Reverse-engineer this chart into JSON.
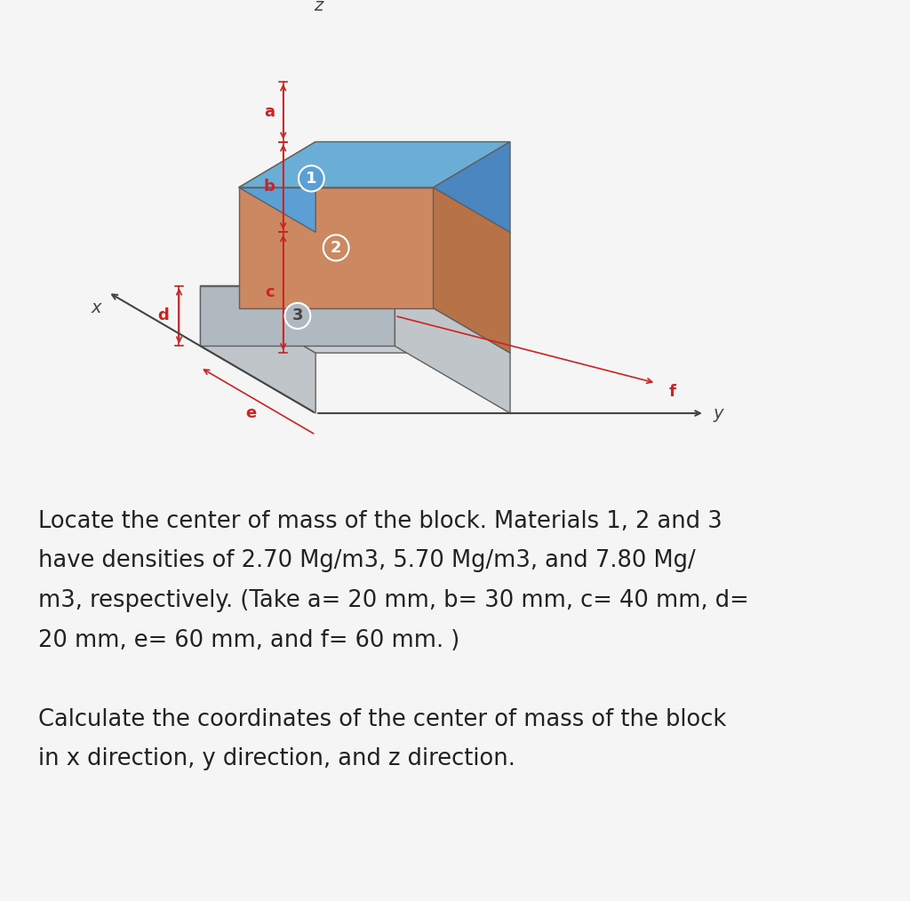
{
  "color_1_blue_top": "#6aaed6",
  "color_1_blue_front": "#5b9fd5",
  "color_1_blue_side": "#4a86c0",
  "color_2_orange_front": "#cc8860",
  "color_2_orange_side": "#b87248",
  "color_3_gray_top": "#c8cdd2",
  "color_3_gray_front": "#b0b8c0",
  "color_3_gray_side": "#c0c5ca",
  "axis_color": "#444444",
  "dim_color": "#cc2222",
  "body_text_1": "Locate the center of mass of the block. Materials 1, 2 and 3",
  "body_text_2": "have densities of 2.70 Mg/m3, 5.70 Mg/m3, and 7.80 Mg/",
  "body_text_3": "m3, respectively. (Take a= 20 mm, b= 30 mm, c= 40 mm, d=",
  "body_text_4": "20 mm, e= 60 mm, and f= 60 mm. )",
  "body_text_5": "Calculate the coordinates of the center of mass of the block",
  "body_text_6": "in x direction, y direction, and z direction.",
  "fig_bg": "#f5f5f5"
}
